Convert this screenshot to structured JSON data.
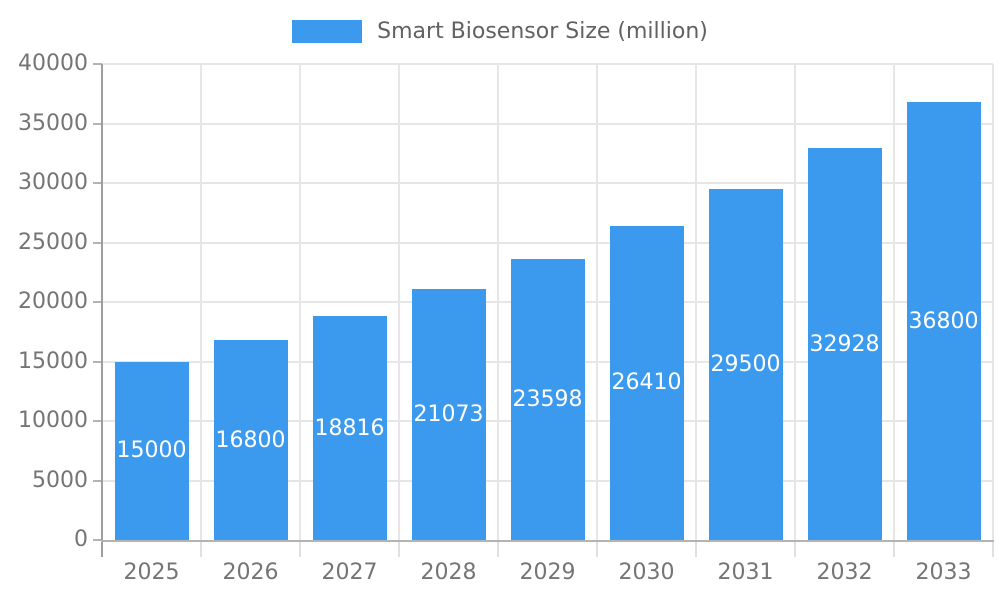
{
  "legend": {
    "label": "Smart Biosensor Size (million)"
  },
  "chart_data": {
    "type": "bar",
    "title": "Smart Biosensor Size (million)",
    "categories": [
      "2025",
      "2026",
      "2027",
      "2028",
      "2029",
      "2030",
      "2031",
      "2032",
      "2033"
    ],
    "series": [
      {
        "name": "Smart Biosensor Size (million)",
        "values": [
          15000,
          16800,
          18816,
          21073,
          23598,
          26410,
          29500,
          32928,
          36800
        ]
      }
    ],
    "value_labels_shown": true,
    "xlabel": "",
    "ylabel": "",
    "ylim": [
      0,
      40000
    ],
    "yticks": [
      0,
      5000,
      10000,
      15000,
      20000,
      25000,
      30000,
      35000,
      40000
    ],
    "grid": true,
    "legend_position": "top"
  },
  "colors": {
    "bar": "#3b99ee",
    "grid": "#e6e6e6",
    "x_tick": "#e0e0e0",
    "y_axis": "#9e9e9e",
    "x_axis": "#b3b3b3",
    "y_tick": "#b3b3b3",
    "tick_label": "#757575",
    "legend_text": "#616161",
    "value_label": "#ffffff",
    "background": "#ffffff"
  }
}
